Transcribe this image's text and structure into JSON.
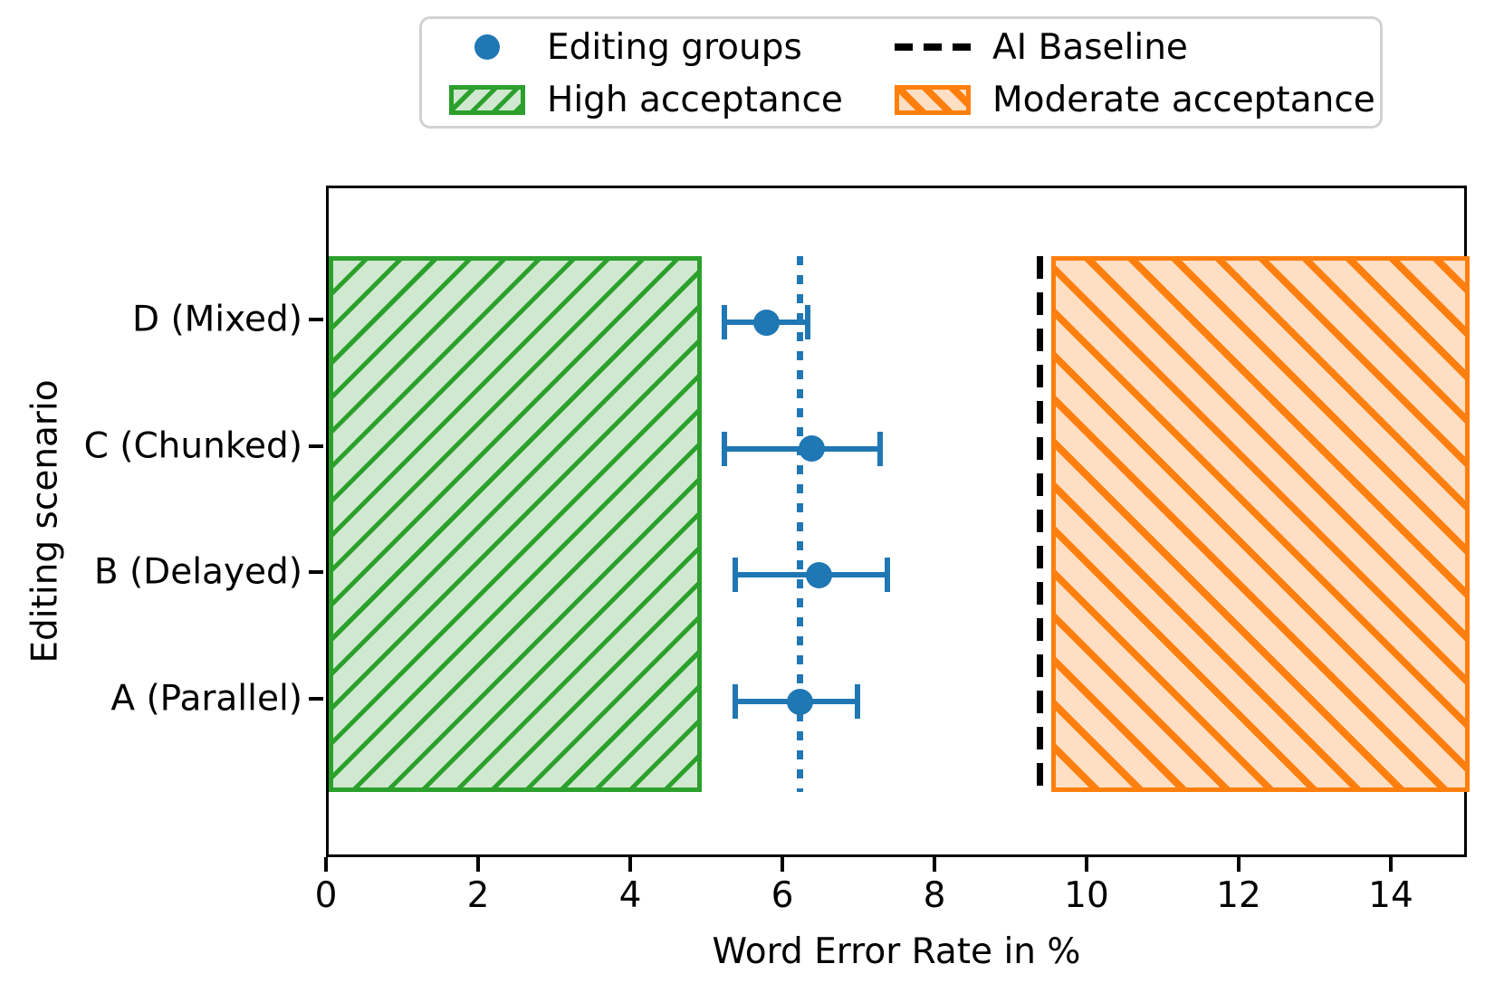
{
  "chart_data": {
    "type": "scatter",
    "xlabel": "Word Error Rate in %",
    "ylabel": "Editing scenario",
    "xlim": [
      0,
      15
    ],
    "xticks": [
      0,
      2,
      4,
      6,
      8,
      10,
      12,
      14
    ],
    "xtick_labels": [
      "0",
      "2",
      "4",
      "6",
      "8",
      "10",
      "12",
      "14"
    ],
    "categories_top_to_bottom": [
      "D (Mixed)",
      "C (Chunked)",
      "B (Delayed)",
      "A (Parallel)"
    ],
    "series": [
      {
        "name": "Editing groups",
        "points": [
          {
            "category": "D (Mixed)",
            "wer": 5.75,
            "ci_low": 5.2,
            "ci_high": 6.3
          },
          {
            "category": "C (Chunked)",
            "wer": 6.35,
            "ci_low": 5.2,
            "ci_high": 7.25
          },
          {
            "category": "B (Delayed)",
            "wer": 6.45,
            "ci_low": 5.35,
            "ci_high": 7.35
          },
          {
            "category": "A (Parallel)",
            "wer": 6.2,
            "ci_low": 5.35,
            "ci_high": 6.95
          }
        ]
      }
    ],
    "reference_lines": [
      {
        "name": "AI Baseline",
        "value": 9.35,
        "style": "dashed",
        "color": "#000000"
      },
      {
        "name": "Editing groups mean",
        "value": 6.2,
        "style": "dotted",
        "color": "#1f77b4"
      }
    ],
    "regions": [
      {
        "name": "High acceptance",
        "from": 0,
        "to": 4.9,
        "color": "#2ca02c",
        "hatch": "/"
      },
      {
        "name": "Moderate acceptance",
        "from": 9.5,
        "to": 15,
        "color": "#ff7f0e",
        "hatch": "\\"
      }
    ],
    "legend_items": [
      {
        "label": "Editing groups",
        "marker": "blue-dot"
      },
      {
        "label": "AI Baseline",
        "marker": "black-dashed-line"
      },
      {
        "label": "High acceptance",
        "marker": "green-hatched-patch"
      },
      {
        "label": "Moderate acceptance",
        "marker": "orange-hatched-patch"
      }
    ],
    "grid": false,
    "legend_position": "top-center"
  },
  "colors": {
    "points": "#1f77b4",
    "high_acceptance": "#2ca02c",
    "moderate_acceptance": "#ff7f0e",
    "baseline": "#000000",
    "legend_border": "#d2d2d2"
  }
}
